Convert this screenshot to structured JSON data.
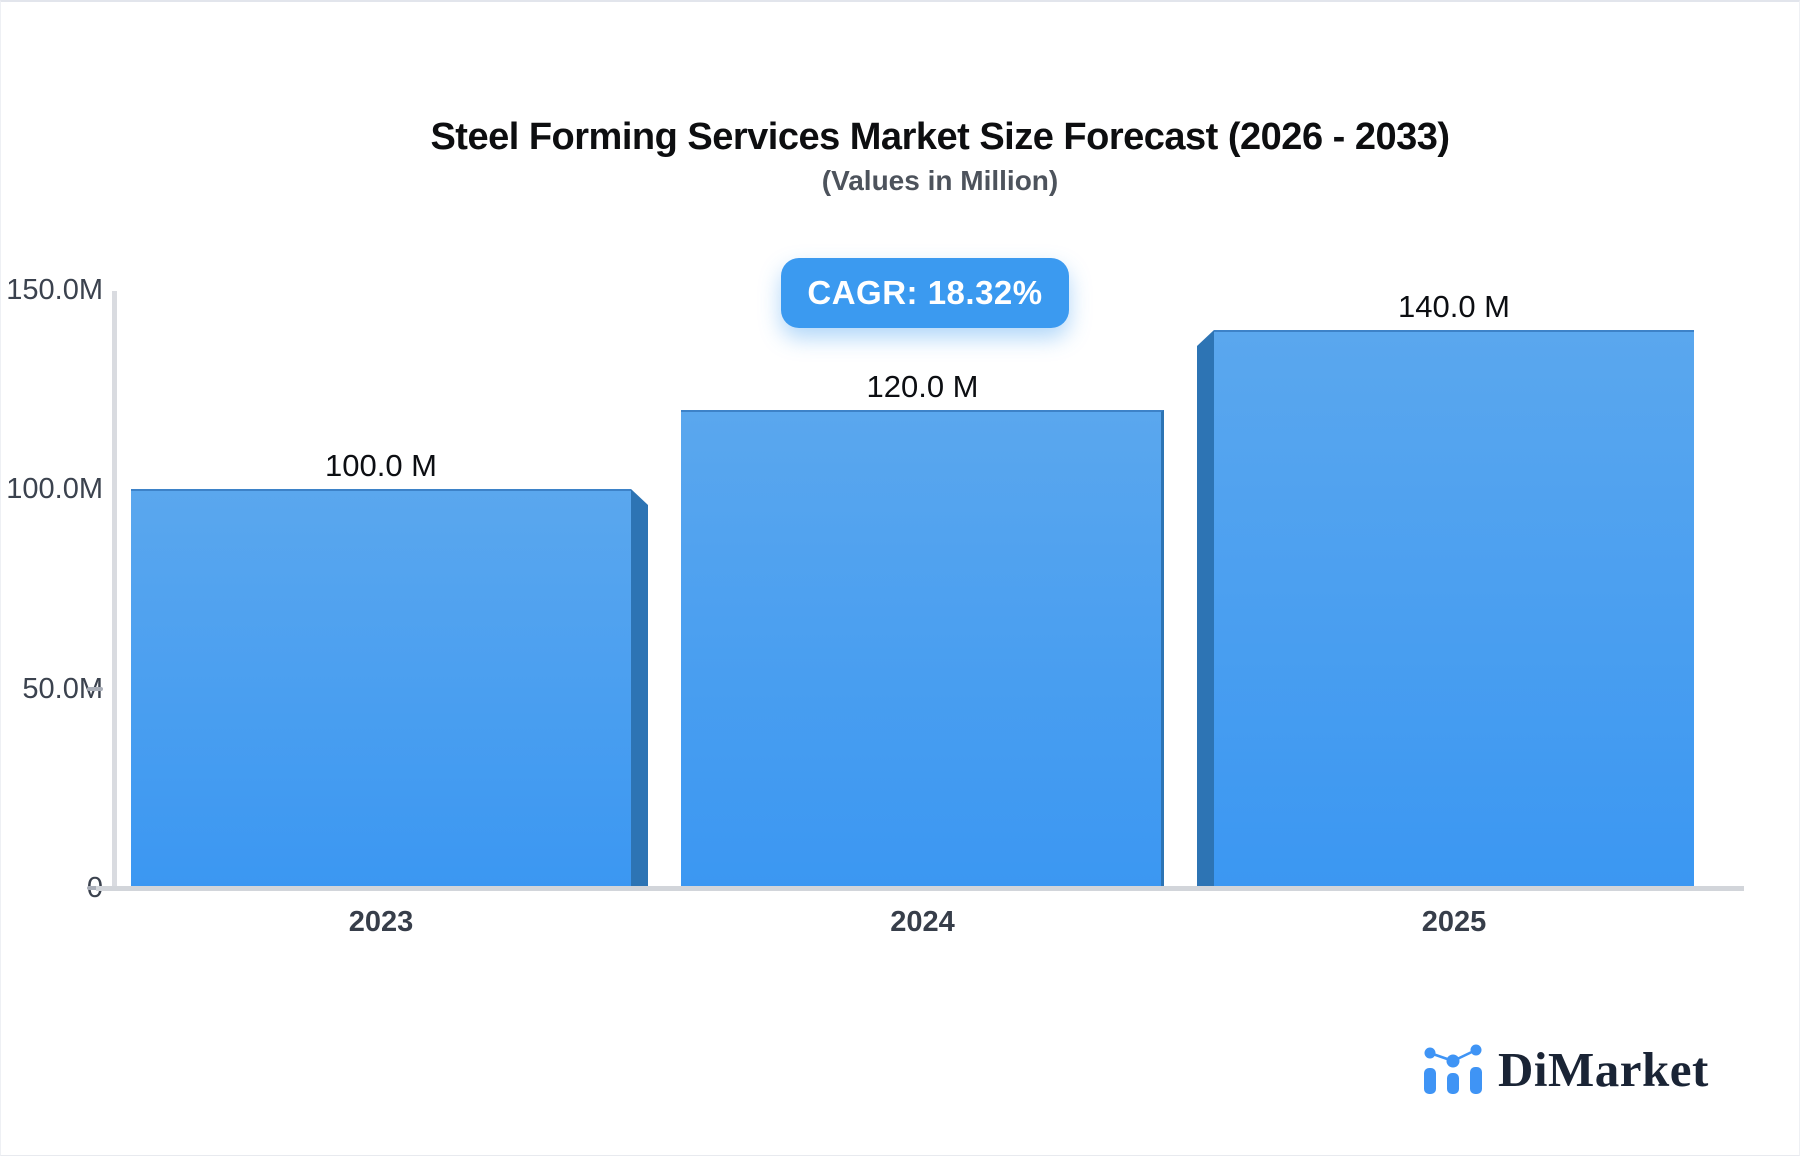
{
  "header": {
    "title": "Steel Forming Services Market Size Forecast (2026 - 2033)",
    "subtitle": "(Values in Million)"
  },
  "badge": {
    "label": "CAGR: 18.32%",
    "color": "#3b9af0"
  },
  "chart_data": {
    "type": "bar",
    "title": "Steel Forming Services Market Size Forecast (2026 - 2033)",
    "subtitle": "(Values in Million)",
    "categories": [
      "2023",
      "2024",
      "2025"
    ],
    "values": [
      100,
      120,
      140
    ],
    "value_labels": [
      "100.0 M",
      "120.0 M",
      "140.0 M"
    ],
    "unit": "Million",
    "cagr": "18.32%",
    "ylim": [
      0,
      150
    ],
    "yticks": [
      {
        "value": 150,
        "label": "150.0M"
      },
      {
        "value": 100,
        "label": "100.0M"
      },
      {
        "value": 50,
        "label": "50.0M"
      },
      {
        "value": 0,
        "label": "0"
      }
    ],
    "grid": false,
    "legend": "none",
    "bar_color_top": "#5aa7ee",
    "bar_color_bottom": "#3b97f2",
    "bar_side_color": "#2d74b4"
  },
  "branding": {
    "name": "DiMarket",
    "logo_icon": "bar-line-chart-icon",
    "icon_color": "#3f94f5",
    "text_color": "#1a2435"
  }
}
